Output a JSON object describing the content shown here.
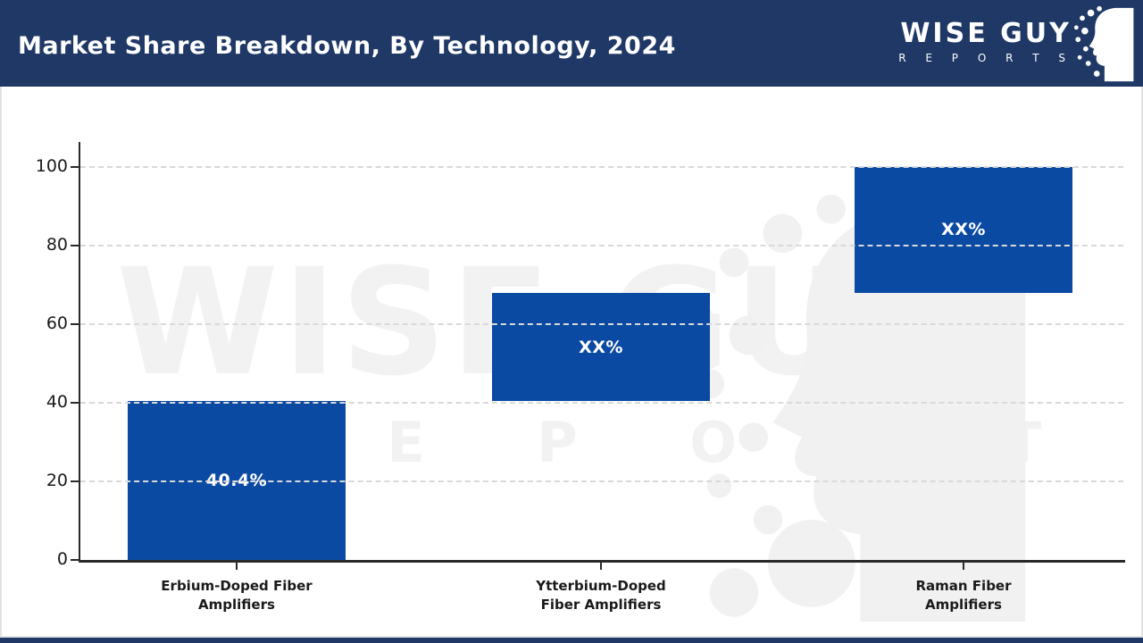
{
  "header": {
    "title": "Market Share Breakdown, By Technology, 2024",
    "logo_line1": "WISE GUY",
    "logo_line2": "R E P O R T S"
  },
  "watermark": {
    "line1": "WISE GUY",
    "line2": "R E P O R T S"
  },
  "colors": {
    "header_bg": "#1f3866",
    "bar_blue": "#0b4aa3",
    "gridline_gray": "#d9d9d9",
    "watermark_gray": "#f2f2f2",
    "bar_label_white": "#ffffff",
    "axis_ink": "#2a2a2a"
  },
  "chart_data": {
    "type": "bar",
    "variant": "waterfall-style floating percentage bars (segments stack to 100%)",
    "title": "Market Share Breakdown, By Technology, 2024",
    "categories": [
      "Erbium-Doped Fiber Amplifiers",
      "Ytterbium-Doped Fiber Amplifiers",
      "Raman Fiber Amplifiers"
    ],
    "category_label_lines": [
      [
        "Erbium-Doped Fiber",
        "Amplifiers"
      ],
      [
        "Ytterbium-Doped",
        "Fiber Amplifiers"
      ],
      [
        "Raman Fiber",
        "Amplifiers"
      ]
    ],
    "segments": [
      {
        "category": "Erbium-Doped Fiber Amplifiers",
        "start": 0,
        "end": 40.4,
        "label": "40.4%"
      },
      {
        "category": "Ytterbium-Doped Fiber Amplifiers",
        "start": 40.4,
        "end": 68,
        "label": "XX%"
      },
      {
        "category": "Raman Fiber Amplifiers",
        "start": 68,
        "end": 100,
        "label": "XX%"
      }
    ],
    "xlabel": "",
    "ylabel": "",
    "ylim": [
      0,
      100
    ],
    "y_ticks": [
      0,
      20,
      40,
      60,
      80,
      100
    ],
    "grid": "horizontal dashed gridlines at each y tick",
    "legend": "none"
  }
}
